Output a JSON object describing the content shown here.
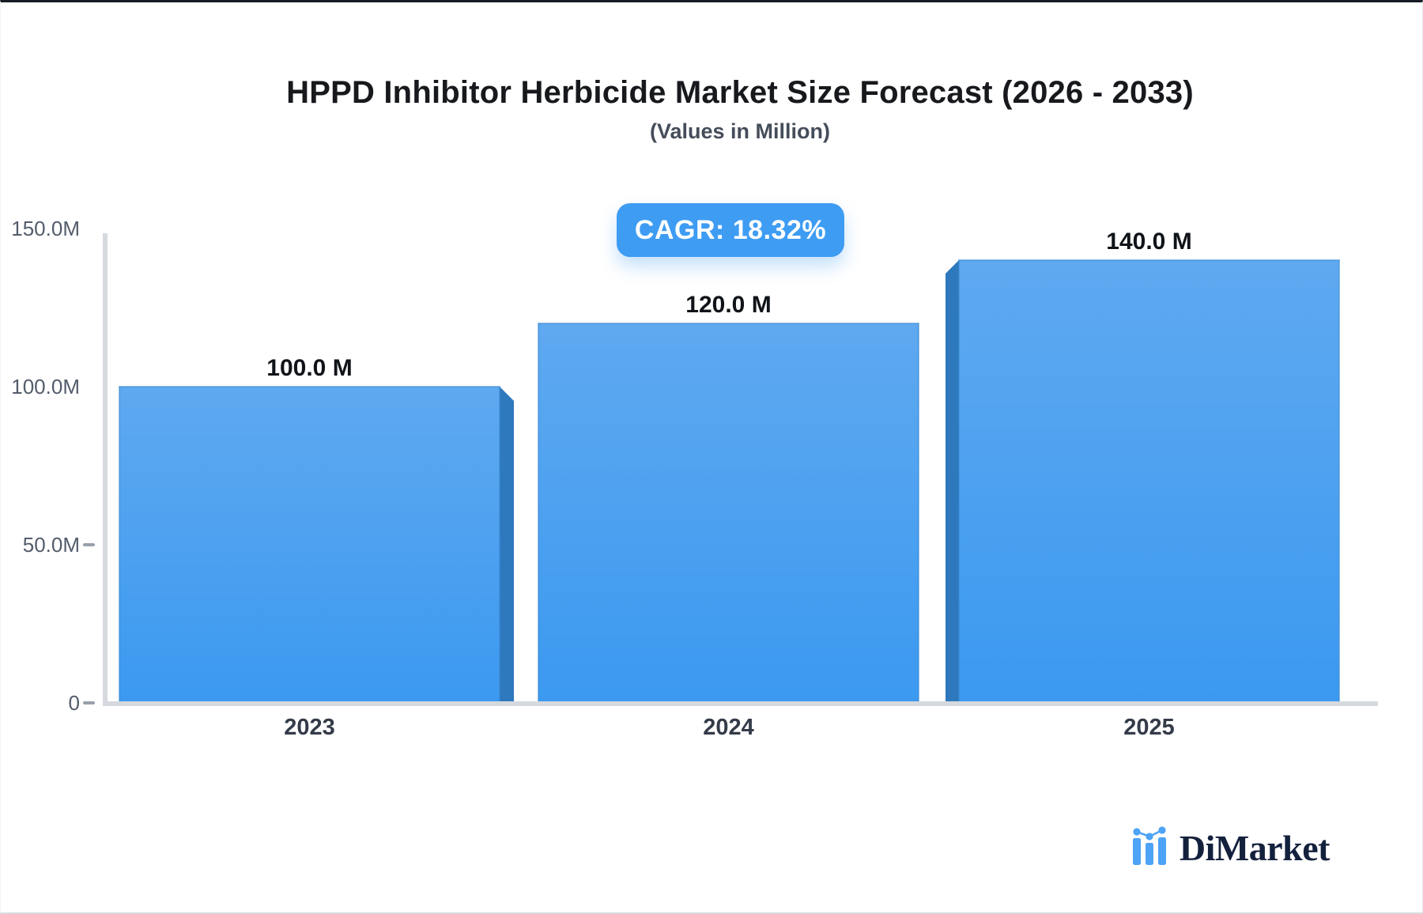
{
  "page": {
    "title": "HPPD Inhibitor Herbicide Market Size Forecast (2026 - 2033)",
    "subtitle": "(Values in Million)",
    "badge": {
      "label": "CAGR: 18.32%",
      "color": "#3E9CF3"
    },
    "brand": {
      "name": "DiMarket",
      "icon": "mini-bar-chart-logo-icon",
      "icon_color": "#4DA3F5",
      "text_color": "#14213D"
    }
  },
  "chart_data": {
    "type": "bar",
    "title": "HPPD Inhibitor Herbicide Market Size Forecast (2026 - 2033)",
    "subtitle": "(Values in Million)",
    "unit": "Million",
    "cagr": "18.32%",
    "categories": [
      "2023",
      "2024",
      "2025"
    ],
    "values": [
      100.0,
      120.0,
      140.0
    ],
    "value_labels": [
      "100.0 M",
      "120.0 M",
      "140.0 M"
    ],
    "ylim": [
      0,
      150
    ],
    "yticks": [
      {
        "value": 150,
        "label": "150.0M",
        "dash": false
      },
      {
        "value": 100,
        "label": "100.0M",
        "dash": false
      },
      {
        "value": 50,
        "label": "50.0M",
        "dash": true
      },
      {
        "value": 0,
        "label": "0",
        "dash": true
      }
    ],
    "grid": "off",
    "legend": "none",
    "xlabel": "",
    "ylabel": "",
    "colors": {
      "bar_top": "#5FA9F0",
      "bar_bottom": "#3B99F0",
      "bar_side": "#2E78BD",
      "bar_stroke": "#3A88D4",
      "axis": "#D6D9DE",
      "tick": "#98A0AB",
      "ytick_label": "#535C6B",
      "value_label": "#101419",
      "category_label": "#343B48"
    }
  }
}
